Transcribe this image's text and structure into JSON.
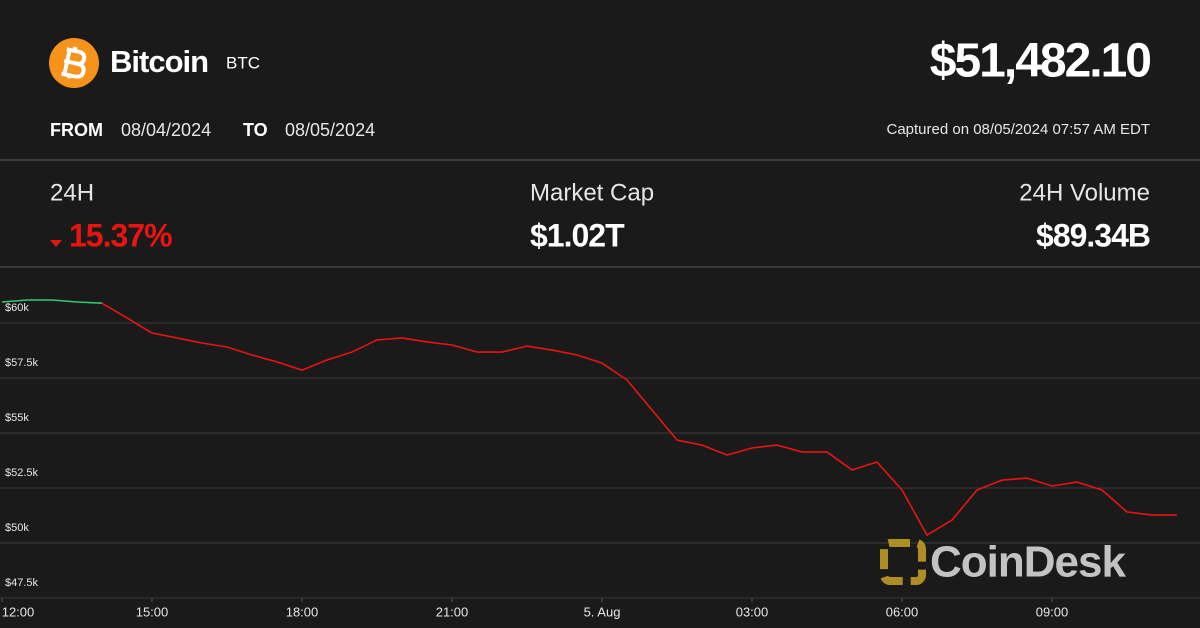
{
  "header": {
    "name": "Bitcoin",
    "symbol": "BTC",
    "price": "$51,482.10",
    "from_label": "FROM",
    "from_date": "08/04/2024",
    "to_label": "TO",
    "to_date": "08/05/2024",
    "captured": "Captured on 08/05/2024 07:57 AM EDT"
  },
  "stats": [
    {
      "label": "24H",
      "value": "15.37%"
    },
    {
      "label": "Market Cap",
      "value": "$1.02T"
    },
    {
      "label": "24H Volume",
      "value": "$89.34B"
    }
  ],
  "watermark": "CoinDesk",
  "chart_data": {
    "type": "line",
    "categories": [
      "12:00",
      null,
      null,
      null,
      null,
      null,
      "15:00",
      null,
      null,
      null,
      null,
      null,
      "18:00",
      null,
      null,
      null,
      null,
      null,
      "21:00",
      null,
      null,
      null,
      null,
      null,
      "5. Aug",
      null,
      null,
      null,
      null,
      null,
      "03:00",
      null,
      null,
      null,
      null,
      null,
      "06:00",
      null,
      null,
      null,
      null,
      null,
      "09:00",
      null,
      null,
      null,
      null,
      null
    ],
    "series": [
      {
        "color": "#2ecc71",
        "values": [
          60955,
          61045,
          61045,
          60955,
          60900,
          null,
          null,
          null,
          null,
          null,
          null,
          null,
          null,
          null,
          null,
          null,
          null,
          null,
          null,
          null,
          null,
          null,
          null,
          null,
          null,
          null,
          null,
          null,
          null,
          null,
          null,
          null,
          null,
          null,
          null,
          null,
          null,
          null,
          null,
          null,
          null,
          null,
          null,
          null,
          null,
          null,
          null,
          null
        ]
      },
      {
        "color": "#e8140f",
        "values": [
          null,
          null,
          null,
          null,
          60900,
          60230,
          59545,
          59320,
          59090,
          58910,
          58545,
          58230,
          57860,
          58320,
          58680,
          59230,
          59320,
          59140,
          59000,
          58680,
          58680,
          58950,
          58770,
          58545,
          58180,
          57410,
          56045,
          54680,
          54450,
          54000,
          54320,
          54450,
          54140,
          54140,
          53320,
          53680,
          52410,
          50360,
          51045,
          52410,
          52860,
          52950,
          52590,
          52770,
          52410,
          51410,
          51270,
          51270
        ]
      }
    ],
    "ylim": [
      47500,
      62500
    ],
    "yticks": [
      {
        "value": 47500,
        "label": "$47.5k"
      },
      {
        "value": 50000,
        "label": "$50k"
      },
      {
        "value": 52500,
        "label": "$52.5k"
      },
      {
        "value": 55000,
        "label": "$55k"
      },
      {
        "value": 57500,
        "label": "$57.5k"
      },
      {
        "value": 60000,
        "label": "$60k"
      }
    ],
    "grid": true
  }
}
